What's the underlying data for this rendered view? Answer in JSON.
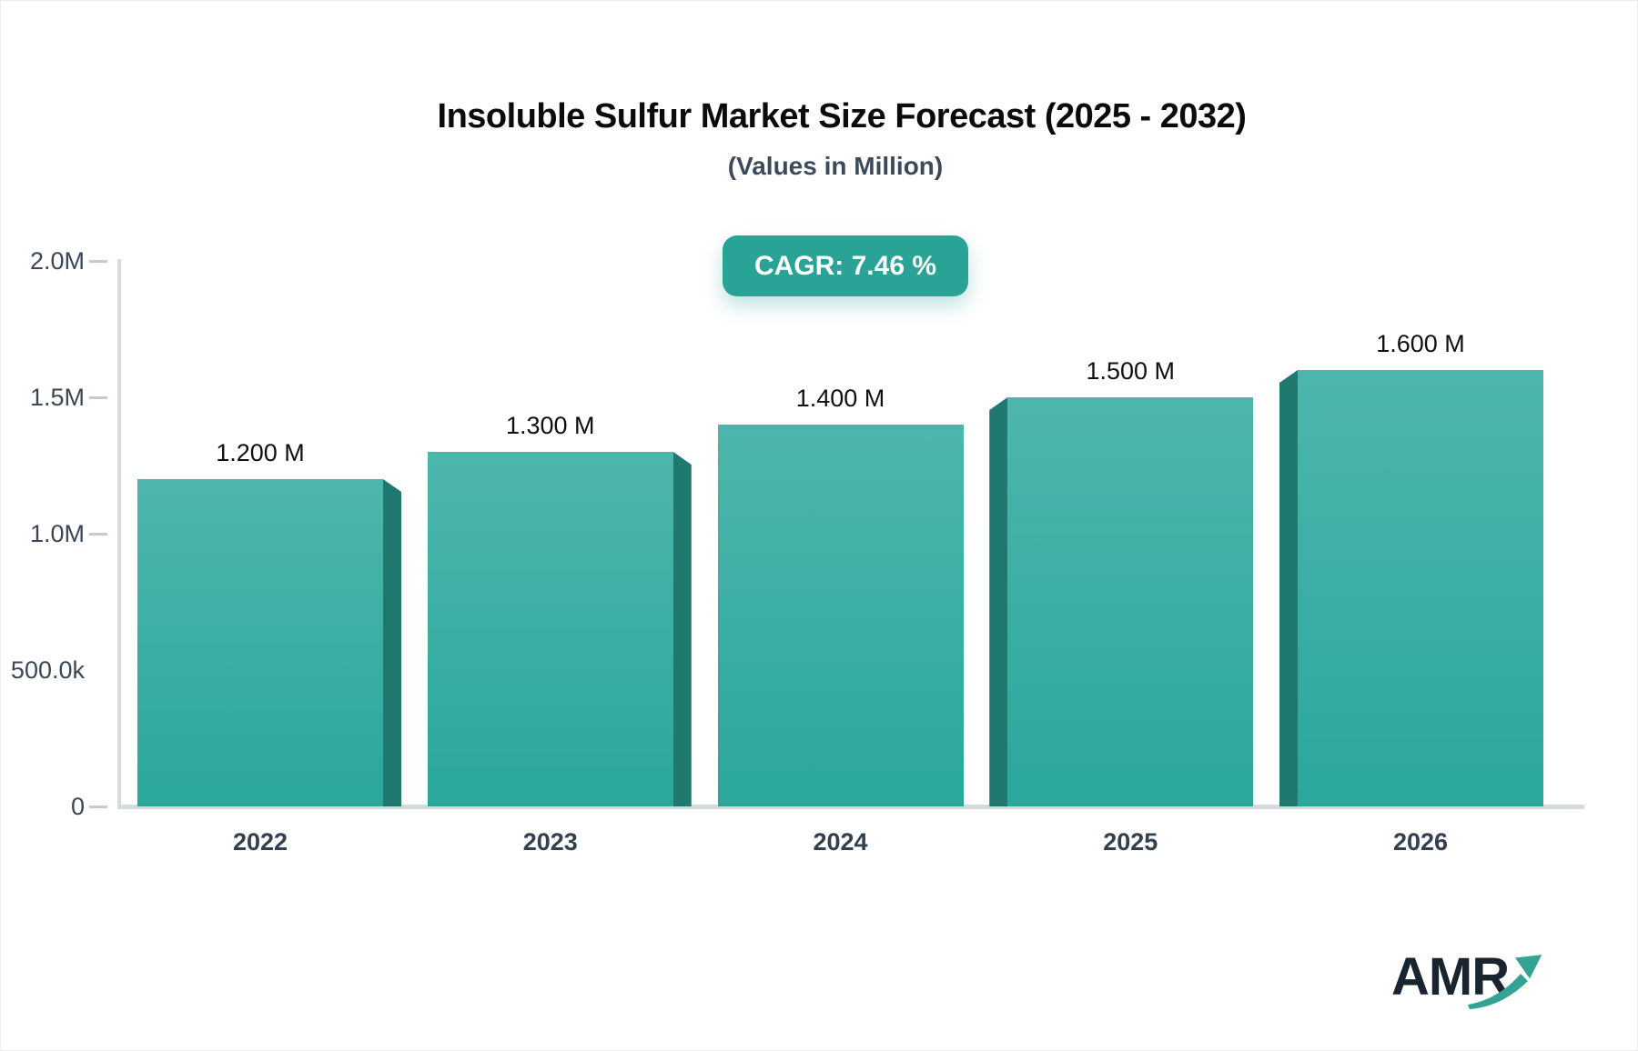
{
  "header": {
    "title": "Insoluble Sulfur Market Size Forecast (2025 - 2032)",
    "subtitle": "(Values in Million)"
  },
  "badge": {
    "label": "CAGR: 7.46 %"
  },
  "chart_data": {
    "type": "bar",
    "title": "Insoluble Sulfur Market Size Forecast (2025 - 2032)",
    "subtitle": "(Values in Million)",
    "unit": "Million",
    "cagr": "7.46 %",
    "categories": [
      "2022",
      "2023",
      "2024",
      "2025",
      "2026"
    ],
    "values": [
      1.2,
      1.3,
      1.4,
      1.5,
      1.6
    ],
    "value_labels": [
      "1.200 M",
      "1.300 M",
      "1.400 M",
      "1.500 M",
      "1.600 M"
    ],
    "ylim": [
      0,
      2.0
    ],
    "y_ticks": [
      {
        "label": "2.0M",
        "value": 2.0,
        "dash": true
      },
      {
        "label": "1.5M",
        "value": 1.5,
        "dash": true
      },
      {
        "label": "1.0M",
        "value": 1.0,
        "dash": true
      },
      {
        "label": "500.0k",
        "value": 0.5,
        "dash": false
      },
      {
        "label": "0",
        "value": 0.0,
        "dash": true
      }
    ],
    "grid": false,
    "legend": false,
    "xlabel": "",
    "ylabel": ""
  },
  "colors": {
    "accent": "#2aa397",
    "bar_gradient_top": "#4db6ac",
    "bar_gradient_bottom": "#2aa79b",
    "bar_side": "#20796f",
    "axis": "#d5dbe1",
    "tick_text": "#3b4656",
    "category_text": "#33404f",
    "value_text": "#101010",
    "logo_text": "#18242f",
    "logo_arrow": "#35a393"
  },
  "logo": {
    "text": "AMR"
  }
}
